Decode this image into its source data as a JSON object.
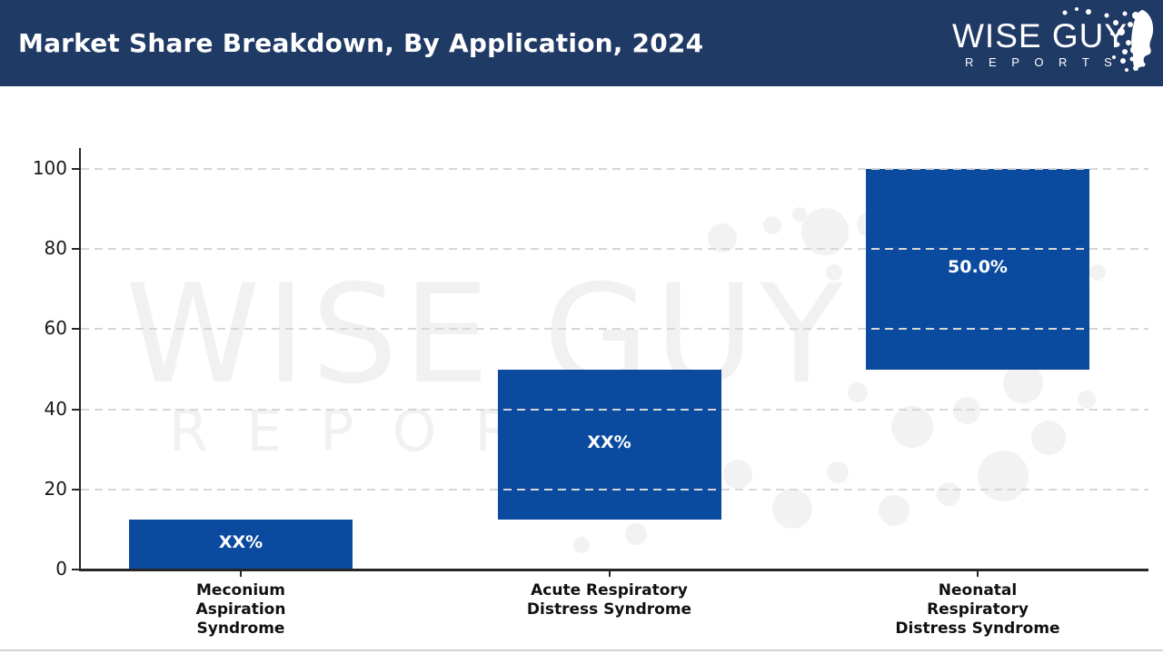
{
  "header": {
    "title": "Market Share Breakdown, By Application, 2024",
    "background_color": "#203A66",
    "logo": {
      "wordmark": "WISE GUY",
      "subtext": "R E P O R T S"
    }
  },
  "watermark": {
    "line1": "WISE GUY",
    "line2": "REPORTS"
  },
  "chart_data": {
    "type": "bar",
    "subtype": "stacked-waterfall-segments",
    "title": "Market Share Breakdown, By Application, 2024",
    "xlabel": "",
    "ylabel": "",
    "ylim": [
      0,
      105
    ],
    "yticks": [
      0,
      20,
      40,
      60,
      80,
      100
    ],
    "grid": "horizontal-dashed",
    "legend": "none",
    "bar_color": "#0A4A9F",
    "bar_label_color": "#FFFFFF",
    "axis_color": "#262626",
    "categories": [
      "Meconium Aspiration Syndrome",
      "Acute Respiratory Distress Syndrome",
      "Neonatal Respiratory Distress Syndrome"
    ],
    "category_lines": [
      [
        "Meconium",
        "Aspiration",
        "Syndrome"
      ],
      [
        "Acute Respiratory",
        "Distress Syndrome"
      ],
      [
        "Neonatal",
        "Respiratory",
        "Distress Syndrome"
      ]
    ],
    "bars": [
      {
        "category": "Meconium Aspiration Syndrome",
        "base": 0,
        "top": 12.5,
        "value": 12.5,
        "value_label": "XX%"
      },
      {
        "category": "Acute Respiratory Distress Syndrome",
        "base": 12.5,
        "top": 50,
        "value": 37.5,
        "value_label": "XX%"
      },
      {
        "category": "Neonatal Respiratory Distress Syndrome",
        "base": 50,
        "top": 100,
        "value": 50.0,
        "value_label": "50.0%"
      }
    ]
  }
}
